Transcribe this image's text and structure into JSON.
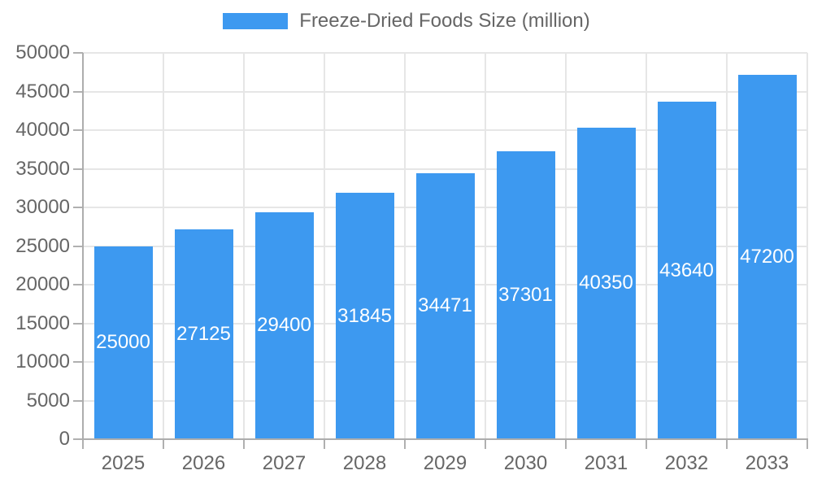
{
  "legend": {
    "label": "Freeze-Dried Foods Size (million)"
  },
  "chart_data": {
    "type": "bar",
    "title": "Freeze-Dried Foods Size (million)",
    "categories": [
      "2025",
      "2026",
      "2027",
      "2028",
      "2029",
      "2030",
      "2031",
      "2032",
      "2033"
    ],
    "values": [
      25000,
      27125,
      29400,
      31845,
      34471,
      37301,
      40350,
      43640,
      47200
    ],
    "bar_value_labels": [
      "25000",
      "27125",
      "29400",
      "31845",
      "34471",
      "37301",
      "40350",
      "43640",
      "47200"
    ],
    "xlabel": "",
    "ylabel": "",
    "ylim": [
      0,
      50000
    ],
    "ytick_step": 5000,
    "ytick_labels": [
      "0",
      "5000",
      "10000",
      "15000",
      "20000",
      "25000",
      "30000",
      "35000",
      "40000",
      "45000",
      "50000"
    ],
    "grid": true,
    "legend_position": "top-center",
    "colors": {
      "bar": "#3D99F0",
      "bar_value_label": "#ffffff",
      "grid": "#E6E6E6",
      "axis": "#ADADAD",
      "tick": "#B0B0B0",
      "tick_label": "#666666",
      "legend_text": "#666666"
    }
  }
}
